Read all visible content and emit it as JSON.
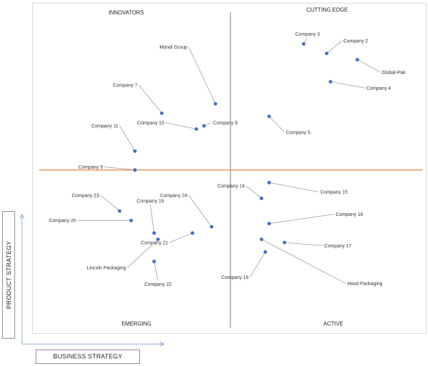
{
  "chart_data": {
    "type": "scatter",
    "quadrants": {
      "top_left": "INNOVATORS",
      "top_right": "CUTTING EDGE",
      "bottom_left": "EMERGING",
      "bottom_right": "ACTIVE"
    },
    "xlabel": "BUSINESS STRATEGY",
    "ylabel": "PRODUCT STRATEGY",
    "xlim": [
      0,
      10
    ],
    "ylim": [
      0,
      10
    ],
    "colors": {
      "point": "#4472c4",
      "h_divider": "#ed7d31",
      "v_divider": "#595959",
      "leader": "#a6a6a6",
      "axis_arrow": "#8eaadb"
    },
    "points": [
      {
        "name": "Mondi Group",
        "x": 4.6,
        "y": 7.1,
        "lx": 3.9,
        "ly": 8.9
      },
      {
        "name": "Company 7",
        "x": 3.2,
        "y": 6.8,
        "lx": 2.6,
        "ly": 7.7
      },
      {
        "name": "Company 10",
        "x": 4.1,
        "y": 6.3,
        "lx": 3.3,
        "ly": 6.5
      },
      {
        "name": "Company 8",
        "x": 4.3,
        "y": 6.4,
        "lx": 4.5,
        "ly": 6.5
      },
      {
        "name": "Company 11",
        "x": 2.5,
        "y": 5.6,
        "lx": 2.1,
        "ly": 6.4
      },
      {
        "name": "Company 9",
        "x": 2.5,
        "y": 5.0,
        "lx": 1.7,
        "ly": 5.1
      },
      {
        "name": "Company 3",
        "x": 6.9,
        "y": 9.0,
        "lx": 7.0,
        "ly": 9.2
      },
      {
        "name": "Company 2",
        "x": 7.5,
        "y": 8.7,
        "lx": 7.9,
        "ly": 9.1
      },
      {
        "name": "Global-Pak",
        "x": 8.3,
        "y": 8.5,
        "lx": 8.9,
        "ly": 8.1
      },
      {
        "name": "Company 4",
        "x": 7.6,
        "y": 7.8,
        "lx": 8.5,
        "ly": 7.6
      },
      {
        "name": "Company 5",
        "x": 6.0,
        "y": 6.7,
        "lx": 6.4,
        "ly": 6.2
      },
      {
        "name": "Company 23",
        "x": 2.1,
        "y": 3.7,
        "lx": 1.6,
        "ly": 4.2
      },
      {
        "name": "Company 19",
        "x": 3.0,
        "y": 3.0,
        "lx": 2.9,
        "ly": 3.9
      },
      {
        "name": "Company 20",
        "x": 2.4,
        "y": 3.4,
        "lx": 1.0,
        "ly": 3.4
      },
      {
        "name": "Company 24",
        "x": 4.5,
        "y": 3.2,
        "lx": 3.9,
        "ly": 4.2
      },
      {
        "name": "Company 21",
        "x": 4.0,
        "y": 3.0,
        "lx": 3.4,
        "ly": 2.7
      },
      {
        "name": "Lincoln Packaging",
        "x": 3.1,
        "y": 2.8,
        "lx": 2.3,
        "ly": 1.9
      },
      {
        "name": "Company 22",
        "x": 3.0,
        "y": 2.1,
        "lx": 3.1,
        "ly": 1.5
      },
      {
        "name": "Company 14",
        "x": 5.8,
        "y": 4.1,
        "lx": 5.4,
        "ly": 4.5
      },
      {
        "name": "Company 15",
        "x": 6.0,
        "y": 4.6,
        "lx": 7.3,
        "ly": 4.3
      },
      {
        "name": "Company 18",
        "x": 6.0,
        "y": 3.3,
        "lx": 7.7,
        "ly": 3.6
      },
      {
        "name": "Company 17",
        "x": 6.4,
        "y": 2.7,
        "lx": 7.4,
        "ly": 2.6
      },
      {
        "name": "Hood Packaging",
        "x": 5.8,
        "y": 2.8,
        "lx": 8.0,
        "ly": 1.4
      },
      {
        "name": "Company 16",
        "x": 5.9,
        "y": 2.4,
        "lx": 5.5,
        "ly": 1.6
      }
    ]
  }
}
